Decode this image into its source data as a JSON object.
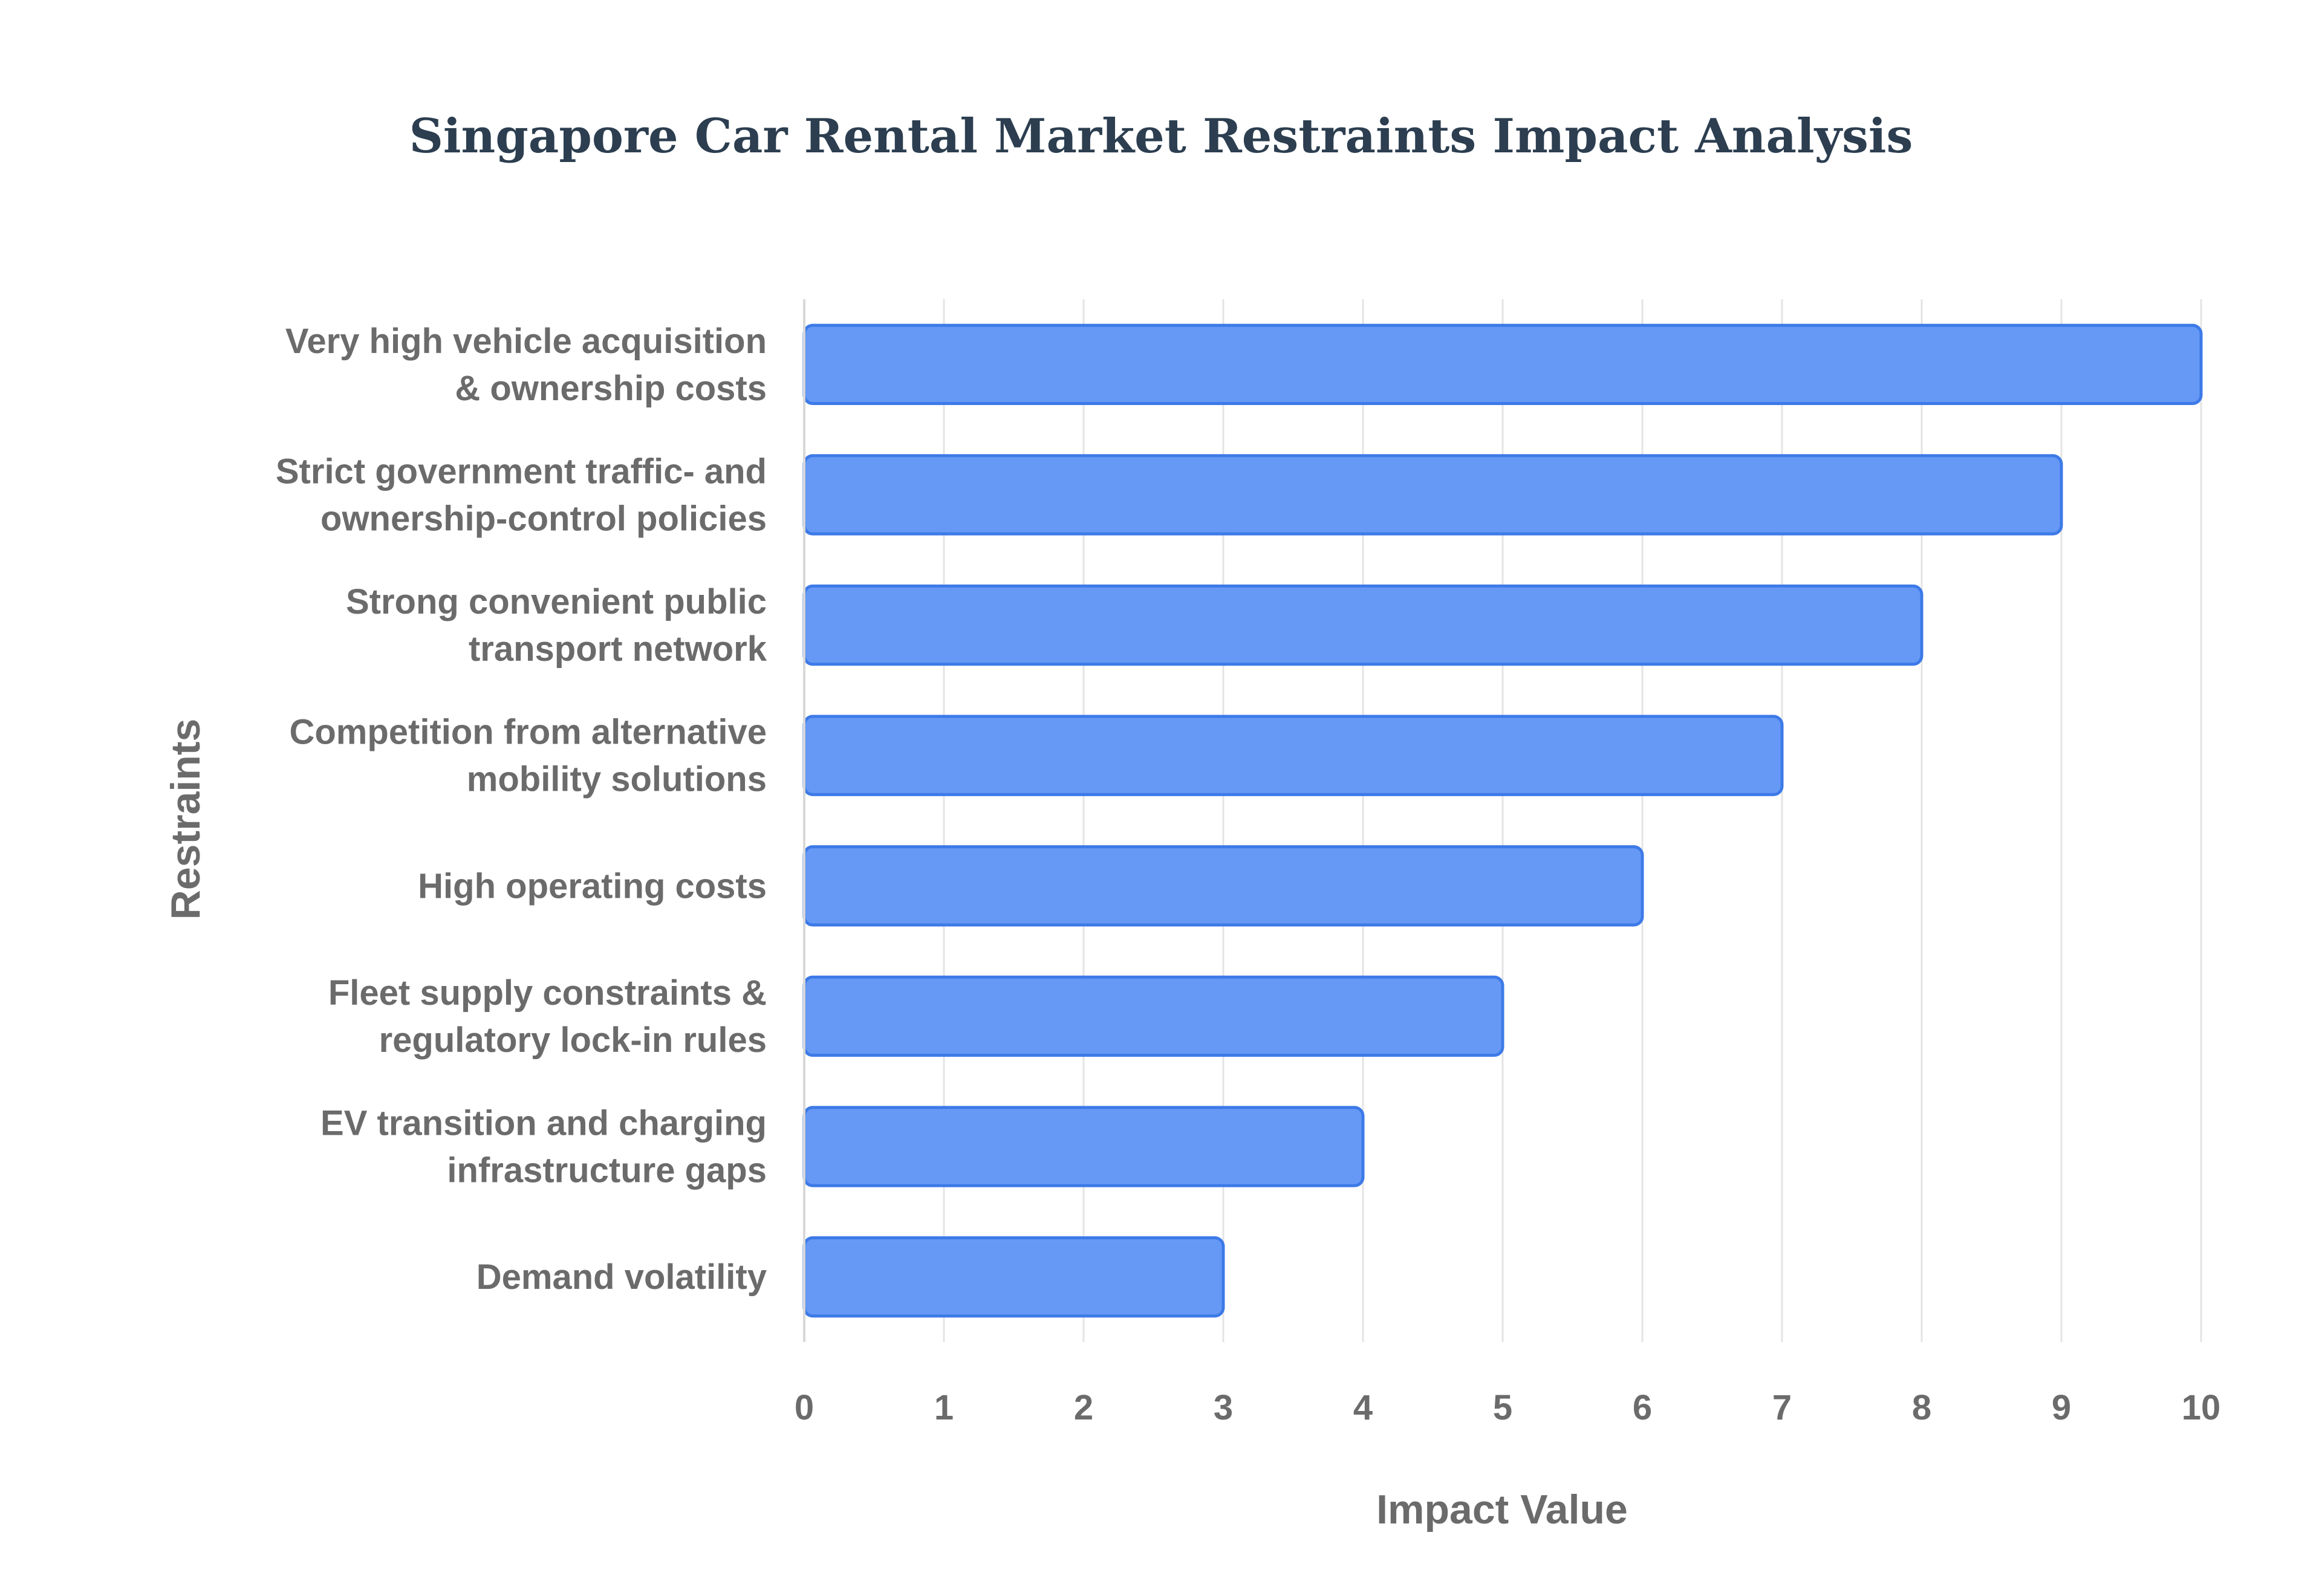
{
  "chart_data": {
    "type": "bar",
    "orientation": "horizontal",
    "title": "Singapore Car Rental Market Restraints Impact Analysis",
    "xlabel": "Impact Value",
    "ylabel": "Restraints",
    "xlim": [
      0,
      10
    ],
    "xticks": [
      "0",
      "1",
      "2",
      "3",
      "4",
      "5",
      "6",
      "7",
      "8",
      "9",
      "10"
    ],
    "grid": true,
    "legend": "none",
    "categories": [
      [
        "Very high vehicle acquisition",
        "& ownership costs"
      ],
      [
        "Strict government traffic- and",
        "ownership-control policies"
      ],
      [
        "Strong convenient public",
        "transport network"
      ],
      [
        "Competition from alternative",
        "mobility solutions"
      ],
      [
        "High operating costs"
      ],
      [
        "Fleet supply constraints &",
        "regulatory lock-in rules"
      ],
      [
        "EV transition and charging",
        "infrastructure gaps"
      ],
      [
        "Demand volatility"
      ]
    ],
    "values": [
      10,
      9,
      8,
      7,
      6,
      5,
      4,
      3
    ],
    "colors": {
      "bar_fill": "#6699f5",
      "bar_stroke": "#3d7ae8",
      "title": "#2c3e50",
      "text": "#6b6b6b"
    }
  }
}
